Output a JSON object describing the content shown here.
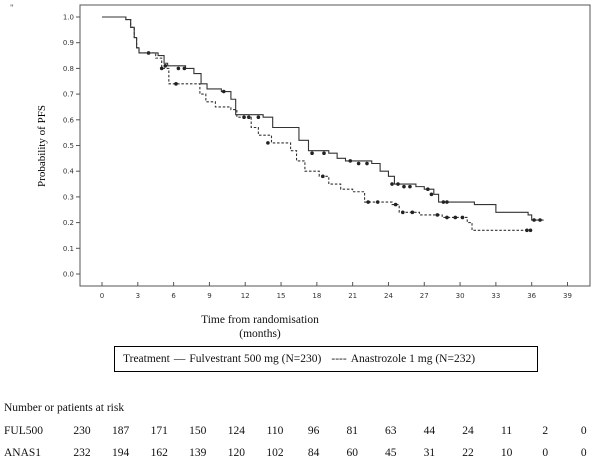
{
  "corner_mark": "\"",
  "chart_data": {
    "type": "line",
    "title": "",
    "xlabel": "Time from randomisation\n(months)",
    "xlabel_line1": "Time from randomisation",
    "xlabel_line2": "(months)",
    "ylabel": "Probability of PFS",
    "xlim": [
      0,
      39
    ],
    "ylim": [
      0.0,
      1.0
    ],
    "x_ticks": [
      0,
      3,
      6,
      9,
      12,
      15,
      18,
      21,
      24,
      27,
      30,
      33,
      36,
      39
    ],
    "y_ticks": [
      "0.0",
      "0.1",
      "0.2",
      "0.3",
      "0.4",
      "0.5",
      "0.6",
      "0.7",
      "0.8",
      "0.9",
      "1.0"
    ],
    "grid": false,
    "series": [
      {
        "name": "Fulvestrant 500 mg (N=230)",
        "style": "solid",
        "color": "#333333",
        "steps": [
          [
            0,
            1.0
          ],
          [
            2.0,
            0.99
          ],
          [
            2.4,
            0.96
          ],
          [
            2.7,
            0.92
          ],
          [
            2.9,
            0.88
          ],
          [
            3.1,
            0.86
          ],
          [
            4.7,
            0.85
          ],
          [
            5.2,
            0.82
          ],
          [
            5.5,
            0.81
          ],
          [
            7.0,
            0.8
          ],
          [
            7.7,
            0.78
          ],
          [
            8.3,
            0.74
          ],
          [
            8.8,
            0.72
          ],
          [
            10.0,
            0.71
          ],
          [
            10.8,
            0.68
          ],
          [
            11.2,
            0.62
          ],
          [
            13.5,
            0.61
          ],
          [
            14.3,
            0.57
          ],
          [
            16.5,
            0.52
          ],
          [
            17.3,
            0.48
          ],
          [
            19.0,
            0.47
          ],
          [
            19.7,
            0.45
          ],
          [
            20.4,
            0.44
          ],
          [
            22.6,
            0.43
          ],
          [
            23.3,
            0.4
          ],
          [
            24.0,
            0.38
          ],
          [
            24.5,
            0.35
          ],
          [
            26.3,
            0.34
          ],
          [
            27.0,
            0.33
          ],
          [
            27.8,
            0.31
          ],
          [
            28.2,
            0.28
          ],
          [
            31.2,
            0.27
          ],
          [
            33.0,
            0.24
          ],
          [
            35.7,
            0.23
          ],
          [
            36.0,
            0.21
          ],
          [
            37.0,
            0.21
          ]
        ],
        "censored": [
          [
            3.9,
            0.86
          ],
          [
            5.3,
            0.81
          ],
          [
            6.4,
            0.8
          ],
          [
            6.9,
            0.8
          ],
          [
            10.2,
            0.71
          ],
          [
            12.3,
            0.61
          ],
          [
            13.1,
            0.61
          ],
          [
            17.6,
            0.47
          ],
          [
            18.6,
            0.47
          ],
          [
            20.8,
            0.44
          ],
          [
            21.5,
            0.43
          ],
          [
            22.2,
            0.43
          ],
          [
            24.3,
            0.35
          ],
          [
            24.8,
            0.35
          ],
          [
            25.3,
            0.34
          ],
          [
            25.8,
            0.34
          ],
          [
            27.3,
            0.33
          ],
          [
            27.6,
            0.31
          ],
          [
            28.6,
            0.28
          ],
          [
            28.9,
            0.28
          ],
          [
            36.2,
            0.21
          ],
          [
            36.7,
            0.21
          ]
        ]
      },
      {
        "name": "Anastrozole 1 mg (N=232)",
        "style": "dashed",
        "color": "#333333",
        "steps": [
          [
            0,
            1.0
          ],
          [
            2.0,
            0.99
          ],
          [
            2.4,
            0.96
          ],
          [
            2.7,
            0.92
          ],
          [
            2.9,
            0.88
          ],
          [
            3.1,
            0.86
          ],
          [
            4.5,
            0.84
          ],
          [
            5.0,
            0.8
          ],
          [
            5.6,
            0.74
          ],
          [
            8.2,
            0.7
          ],
          [
            8.7,
            0.67
          ],
          [
            9.5,
            0.65
          ],
          [
            10.8,
            0.64
          ],
          [
            11.3,
            0.61
          ],
          [
            12.5,
            0.57
          ],
          [
            13.1,
            0.54
          ],
          [
            14.2,
            0.51
          ],
          [
            15.8,
            0.48
          ],
          [
            16.3,
            0.44
          ],
          [
            17.0,
            0.4
          ],
          [
            18.2,
            0.38
          ],
          [
            19.0,
            0.35
          ],
          [
            20.0,
            0.33
          ],
          [
            21.0,
            0.32
          ],
          [
            22.0,
            0.28
          ],
          [
            24.3,
            0.27
          ],
          [
            24.9,
            0.24
          ],
          [
            26.6,
            0.23
          ],
          [
            28.5,
            0.22
          ],
          [
            30.6,
            0.2
          ],
          [
            31.0,
            0.17
          ],
          [
            35.9,
            0.17
          ]
        ],
        "censored": [
          [
            5.0,
            0.8
          ],
          [
            6.2,
            0.74
          ],
          [
            11.9,
            0.61
          ],
          [
            13.9,
            0.51
          ],
          [
            18.5,
            0.38
          ],
          [
            22.3,
            0.28
          ],
          [
            23.1,
            0.28
          ],
          [
            24.6,
            0.27
          ],
          [
            25.2,
            0.24
          ],
          [
            26.0,
            0.24
          ],
          [
            28.1,
            0.23
          ],
          [
            28.9,
            0.22
          ],
          [
            29.6,
            0.22
          ],
          [
            30.2,
            0.22
          ],
          [
            35.6,
            0.17
          ],
          [
            35.9,
            0.17
          ]
        ]
      }
    ]
  },
  "legend": {
    "prefix": "Treatment",
    "item1_marker": "—",
    "item1_label": "Fulvestrant 500 mg (N=230)",
    "item2_marker": "----",
    "item2_label": "Anastrozole 1 mg (N=232)"
  },
  "risk_table": {
    "title": "Number or patients at risk",
    "rows": [
      {
        "label": "FUL500",
        "values": [
          "230",
          "187",
          "171",
          "150",
          "124",
          "110",
          "96",
          "81",
          "63",
          "44",
          "24",
          "11",
          "2",
          "0"
        ]
      },
      {
        "label": "ANAS1",
        "values": [
          "232",
          "194",
          "162",
          "139",
          "120",
          "102",
          "84",
          "60",
          "45",
          "31",
          "22",
          "10",
          "0",
          "0"
        ]
      }
    ]
  }
}
